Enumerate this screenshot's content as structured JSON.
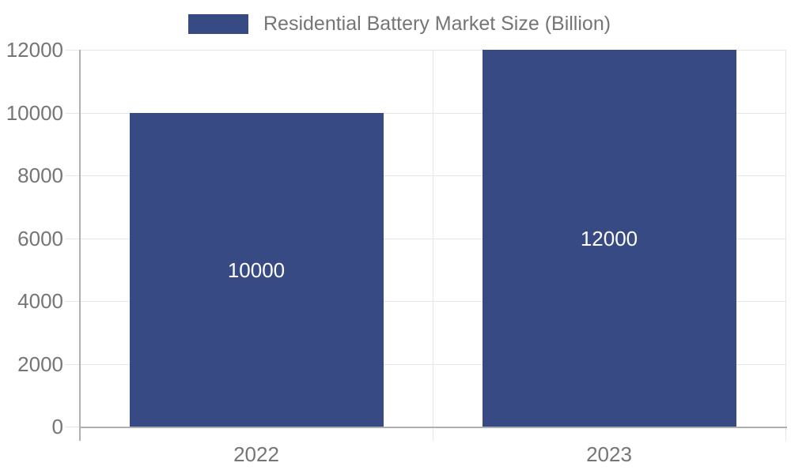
{
  "chart_data": {
    "type": "bar",
    "title": "Residential Battery Market Size (Billion)",
    "categories": [
      "2022",
      "2023"
    ],
    "values": [
      10000,
      12000
    ],
    "bar_labels": [
      "10000",
      "12000"
    ],
    "xlabel": "",
    "ylabel": "",
    "ylim": [
      0,
      12000
    ],
    "yticks": [
      0,
      2000,
      4000,
      6000,
      8000,
      10000,
      12000
    ],
    "grid": true,
    "legend_position": "top",
    "colors": {
      "bar": "#384a83",
      "grid": "#e6e6e6",
      "axis": "#b0b0b0",
      "text": "#757575",
      "bar_label": "#ffffff",
      "background": "#ffffff"
    }
  }
}
